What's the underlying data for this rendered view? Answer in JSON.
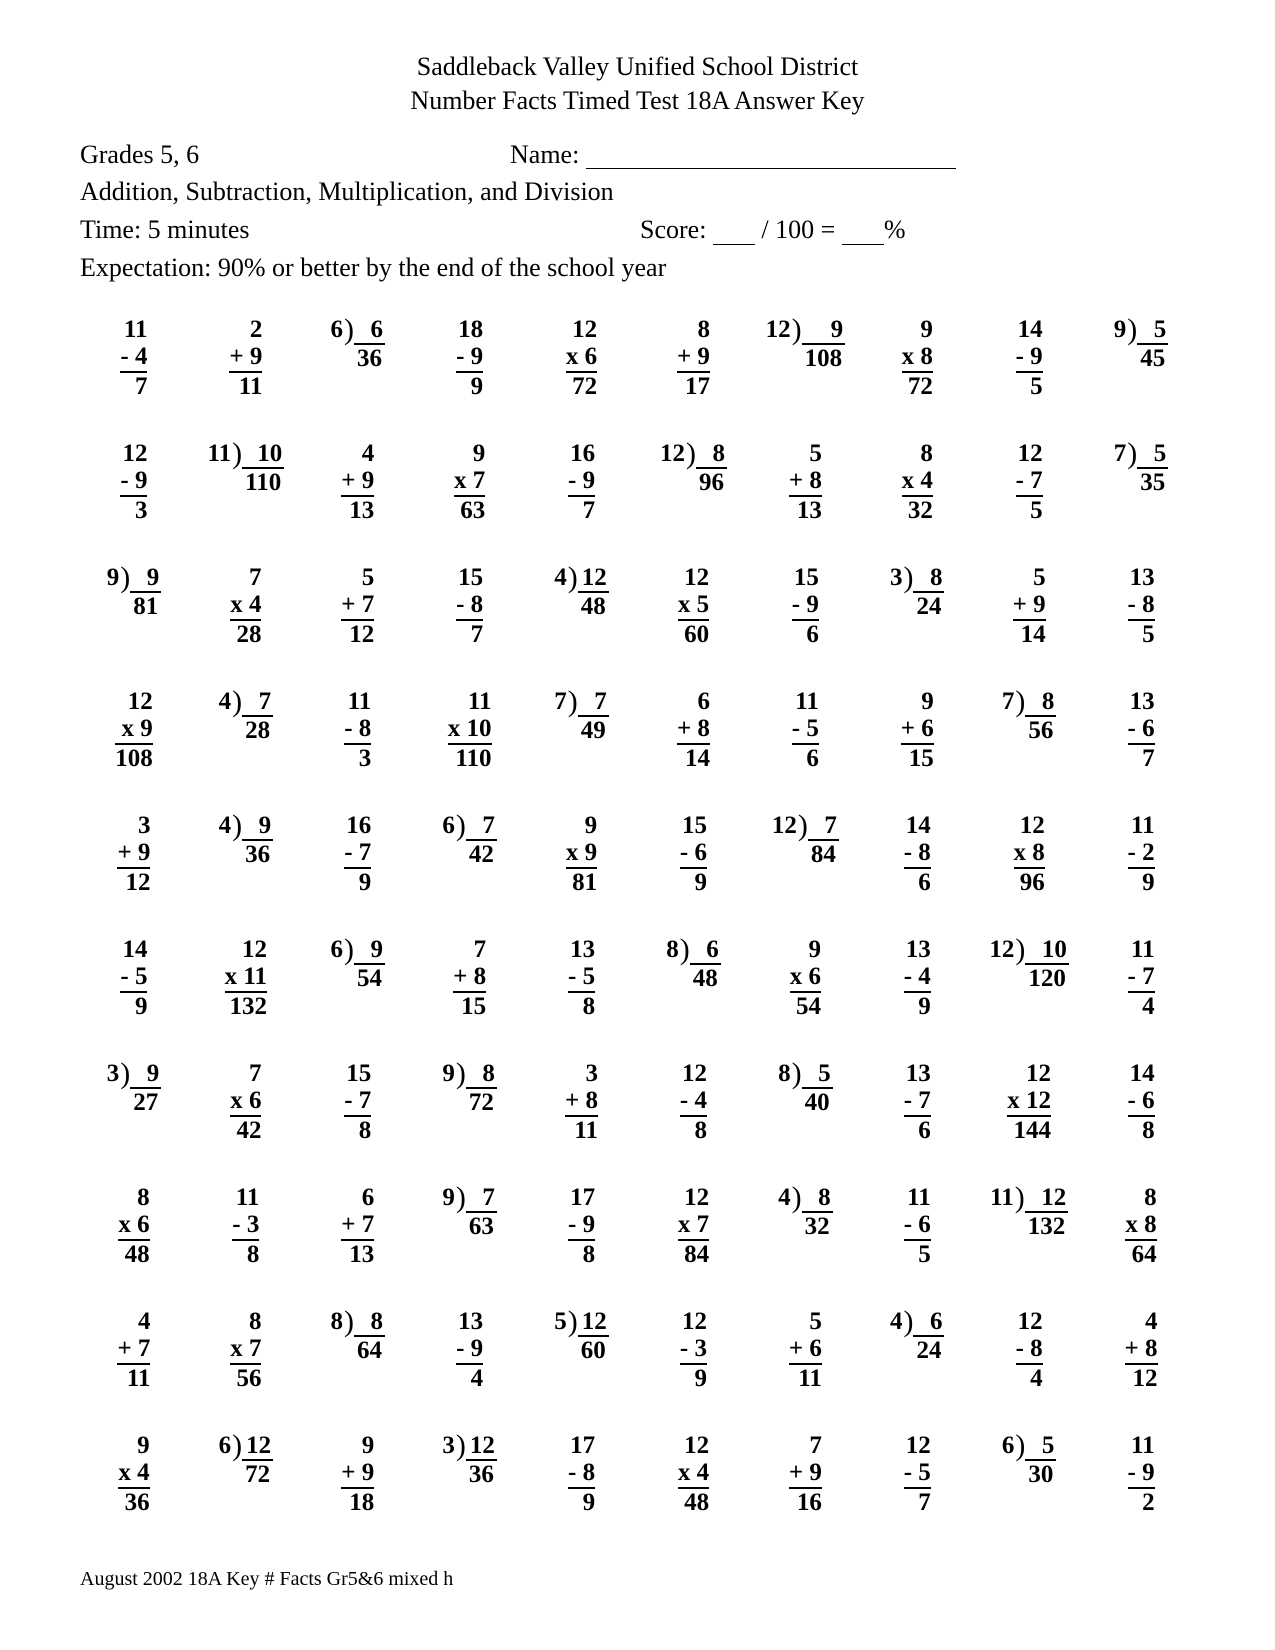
{
  "header": {
    "district": "Saddleback Valley Unified School District",
    "title": "Number Facts Timed Test 18A Answer Key"
  },
  "meta": {
    "grades": "Grades 5, 6",
    "name_label": "Name:",
    "ops": "Addition, Subtraction, Multiplication, and Division",
    "time": "Time:  5 minutes",
    "score_label": "Score:",
    "score_suffix_1": "/ 100 =",
    "score_suffix_2": "%",
    "expectation": "Expectation: 90% or better by the end of the school year"
  },
  "footer": "August 2002 18A Key # Facts Gr5&6 mixed h",
  "problems": [
    [
      {
        "t": "v",
        "a": "11",
        "b": "- 4",
        "r": "7"
      },
      {
        "t": "v",
        "a": "2",
        "b": "+ 9",
        "r": "11"
      },
      {
        "t": "d",
        "q": "6",
        "dvs": "6",
        "dvd": "36"
      },
      {
        "t": "v",
        "a": "18",
        "b": "- 9",
        "r": "9"
      },
      {
        "t": "v",
        "a": "12",
        "b": "x 6",
        "r": "72"
      },
      {
        "t": "v",
        "a": "8",
        "b": "+ 9",
        "r": "17"
      },
      {
        "t": "d",
        "q": "9",
        "dvs": "12",
        "dvd": "108"
      },
      {
        "t": "v",
        "a": "9",
        "b": "x 8",
        "r": "72"
      },
      {
        "t": "v",
        "a": "14",
        "b": "- 9",
        "r": "5"
      },
      {
        "t": "d",
        "q": "5",
        "dvs": "9",
        "dvd": "45"
      }
    ],
    [
      {
        "t": "v",
        "a": "12",
        "b": "- 9",
        "r": "3"
      },
      {
        "t": "d",
        "q": "10",
        "dvs": "11",
        "dvd": "110"
      },
      {
        "t": "v",
        "a": "4",
        "b": "+ 9",
        "r": "13"
      },
      {
        "t": "v",
        "a": "9",
        "b": "x 7",
        "r": "63"
      },
      {
        "t": "v",
        "a": "16",
        "b": "- 9",
        "r": "7"
      },
      {
        "t": "d",
        "q": "8",
        "dvs": "12",
        "dvd": "96"
      },
      {
        "t": "v",
        "a": "5",
        "b": "+ 8",
        "r": "13"
      },
      {
        "t": "v",
        "a": "8",
        "b": "x 4",
        "r": "32"
      },
      {
        "t": "v",
        "a": "12",
        "b": "- 7",
        "r": "5"
      },
      {
        "t": "d",
        "q": "5",
        "dvs": "7",
        "dvd": "35"
      }
    ],
    [
      {
        "t": "d",
        "q": "9",
        "dvs": "9",
        "dvd": "81"
      },
      {
        "t": "v",
        "a": "7",
        "b": "x 4",
        "r": "28"
      },
      {
        "t": "v",
        "a": "5",
        "b": "+ 7",
        "r": "12"
      },
      {
        "t": "v",
        "a": "15",
        "b": "- 8",
        "r": "7"
      },
      {
        "t": "d",
        "q": "12",
        "dvs": "4",
        "dvd": "48"
      },
      {
        "t": "v",
        "a": "12",
        "b": "x 5",
        "r": "60"
      },
      {
        "t": "v",
        "a": "15",
        "b": "- 9",
        "r": "6"
      },
      {
        "t": "d",
        "q": "8",
        "dvs": "3",
        "dvd": "24"
      },
      {
        "t": "v",
        "a": "5",
        "b": "+ 9",
        "r": "14"
      },
      {
        "t": "v",
        "a": "13",
        "b": "- 8",
        "r": "5"
      }
    ],
    [
      {
        "t": "v",
        "a": "12",
        "b": "x 9",
        "r": "108"
      },
      {
        "t": "d",
        "q": "7",
        "dvs": "4",
        "dvd": "28"
      },
      {
        "t": "v",
        "a": "11",
        "b": "- 8",
        "r": "3"
      },
      {
        "t": "v",
        "a": "11",
        "b": "x 10",
        "r": "110"
      },
      {
        "t": "d",
        "q": "7",
        "dvs": "7",
        "dvd": "49"
      },
      {
        "t": "v",
        "a": "6",
        "b": "+ 8",
        "r": "14"
      },
      {
        "t": "v",
        "a": "11",
        "b": "- 5",
        "r": "6"
      },
      {
        "t": "v",
        "a": "9",
        "b": "+ 6",
        "r": "15"
      },
      {
        "t": "d",
        "q": "8",
        "dvs": "7",
        "dvd": "56"
      },
      {
        "t": "v",
        "a": "13",
        "b": "- 6",
        "r": "7"
      }
    ],
    [
      {
        "t": "v",
        "a": "3",
        "b": "+ 9",
        "r": "12"
      },
      {
        "t": "d",
        "q": "9",
        "dvs": "4",
        "dvd": "36"
      },
      {
        "t": "v",
        "a": "16",
        "b": "- 7",
        "r": "9"
      },
      {
        "t": "d",
        "q": "7",
        "dvs": "6",
        "dvd": "42"
      },
      {
        "t": "v",
        "a": "9",
        "b": "x 9",
        "r": "81"
      },
      {
        "t": "v",
        "a": "15",
        "b": "- 6",
        "r": "9"
      },
      {
        "t": "d",
        "q": "7",
        "dvs": "12",
        "dvd": "84"
      },
      {
        "t": "v",
        "a": "14",
        "b": "- 8",
        "r": "6"
      },
      {
        "t": "v",
        "a": "12",
        "b": "x 8",
        "r": "96"
      },
      {
        "t": "v",
        "a": "11",
        "b": "- 2",
        "r": "9"
      }
    ],
    [
      {
        "t": "v",
        "a": "14",
        "b": "- 5",
        "r": "9"
      },
      {
        "t": "v",
        "a": "12",
        "b": "x 11",
        "r": "132"
      },
      {
        "t": "d",
        "q": "9",
        "dvs": "6",
        "dvd": "54"
      },
      {
        "t": "v",
        "a": "7",
        "b": "+ 8",
        "r": "15"
      },
      {
        "t": "v",
        "a": "13",
        "b": "- 5",
        "r": "8"
      },
      {
        "t": "d",
        "q": "6",
        "dvs": "8",
        "dvd": "48"
      },
      {
        "t": "v",
        "a": "9",
        "b": "x 6",
        "r": "54"
      },
      {
        "t": "v",
        "a": "13",
        "b": "- 4",
        "r": "9"
      },
      {
        "t": "d",
        "q": "10",
        "dvs": "12",
        "dvd": "120"
      },
      {
        "t": "v",
        "a": "11",
        "b": "- 7",
        "r": "4"
      }
    ],
    [
      {
        "t": "d",
        "q": "9",
        "dvs": "3",
        "dvd": "27"
      },
      {
        "t": "v",
        "a": "7",
        "b": "x 6",
        "r": "42"
      },
      {
        "t": "v",
        "a": "15",
        "b": "- 7",
        "r": "8"
      },
      {
        "t": "d",
        "q": "8",
        "dvs": "9",
        "dvd": "72"
      },
      {
        "t": "v",
        "a": "3",
        "b": "+ 8",
        "r": "11"
      },
      {
        "t": "v",
        "a": "12",
        "b": "- 4",
        "r": "8"
      },
      {
        "t": "d",
        "q": "5",
        "dvs": "8",
        "dvd": "40"
      },
      {
        "t": "v",
        "a": "13",
        "b": "- 7",
        "r": "6"
      },
      {
        "t": "v",
        "a": "12",
        "b": "x 12",
        "r": "144"
      },
      {
        "t": "v",
        "a": "14",
        "b": "- 6",
        "r": "8"
      }
    ],
    [
      {
        "t": "v",
        "a": "8",
        "b": "x 6",
        "r": "48"
      },
      {
        "t": "v",
        "a": "11",
        "b": "- 3",
        "r": "8"
      },
      {
        "t": "v",
        "a": "6",
        "b": "+ 7",
        "r": "13"
      },
      {
        "t": "d",
        "q": "7",
        "dvs": "9",
        "dvd": "63"
      },
      {
        "t": "v",
        "a": "17",
        "b": "- 9",
        "r": "8"
      },
      {
        "t": "v",
        "a": "12",
        "b": "x 7",
        "r": "84"
      },
      {
        "t": "d",
        "q": "8",
        "dvs": "4",
        "dvd": "32"
      },
      {
        "t": "v",
        "a": "11",
        "b": "- 6",
        "r": "5"
      },
      {
        "t": "d",
        "q": "12",
        "dvs": "11",
        "dvd": "132"
      },
      {
        "t": "v",
        "a": "8",
        "b": "x 8",
        "r": "64"
      }
    ],
    [
      {
        "t": "v",
        "a": "4",
        "b": "+ 7",
        "r": "11"
      },
      {
        "t": "v",
        "a": "8",
        "b": "x 7",
        "r": "56"
      },
      {
        "t": "d",
        "q": "8",
        "dvs": "8",
        "dvd": "64"
      },
      {
        "t": "v",
        "a": "13",
        "b": "- 9",
        "r": "4"
      },
      {
        "t": "d",
        "q": "12",
        "dvs": "5",
        "dvd": "60"
      },
      {
        "t": "v",
        "a": "12",
        "b": "- 3",
        "r": "9"
      },
      {
        "t": "v",
        "a": "5",
        "b": "+ 6",
        "r": "11"
      },
      {
        "t": "d",
        "q": "6",
        "dvs": "4",
        "dvd": "24"
      },
      {
        "t": "v",
        "a": "12",
        "b": "- 8",
        "r": "4"
      },
      {
        "t": "v",
        "a": "4",
        "b": "+ 8",
        "r": "12"
      }
    ],
    [
      {
        "t": "v",
        "a": "9",
        "b": "x 4",
        "r": "36"
      },
      {
        "t": "d",
        "q": "12",
        "dvs": "6",
        "dvd": "72"
      },
      {
        "t": "v",
        "a": "9",
        "b": "+ 9",
        "r": "18"
      },
      {
        "t": "d",
        "q": "12",
        "dvs": "3",
        "dvd": "36"
      },
      {
        "t": "v",
        "a": "17",
        "b": "- 8",
        "r": "9"
      },
      {
        "t": "v",
        "a": "12",
        "b": "x 4",
        "r": "48"
      },
      {
        "t": "v",
        "a": "7",
        "b": "+ 9",
        "r": "16"
      },
      {
        "t": "v",
        "a": "12",
        "b": "- 5",
        "r": "7"
      },
      {
        "t": "d",
        "q": "5",
        "dvs": "6",
        "dvd": "30"
      },
      {
        "t": "v",
        "a": "11",
        "b": "- 9",
        "r": "2"
      }
    ]
  ]
}
